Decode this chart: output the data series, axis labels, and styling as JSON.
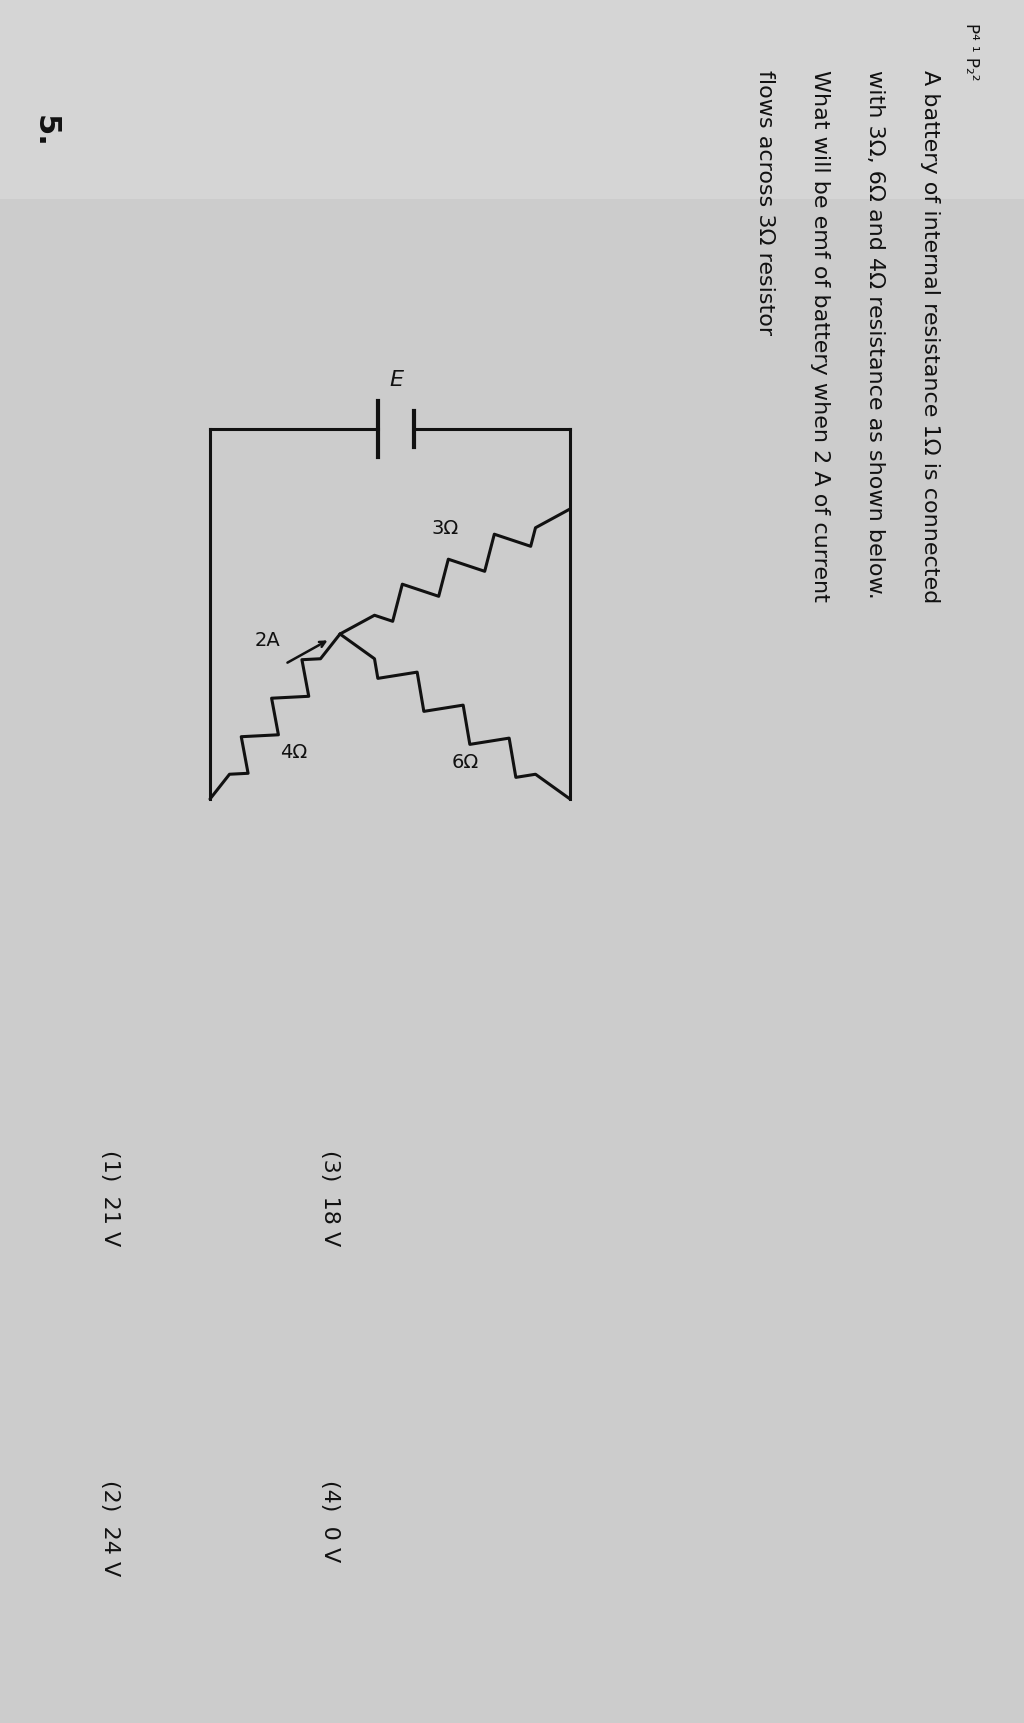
{
  "background_color": "#c8c8c8",
  "question_number": "5.",
  "question_text_lines": [
    "A battery of internal resistance 1Ω is connected",
    "with 3Ω, 6Ω and 4Ω resistance as shown below.",
    "What will be emf of battery when 2 A of current",
    "flows across 3Ω resistor"
  ],
  "options": [
    "(1)  21 V",
    "(2)  24 V",
    "(3)  18 V",
    "(4)  0 V"
  ],
  "header_text": "P⁴ ¹ P₂²",
  "circuit": {
    "res_3ohm": "3Ω",
    "res_6ohm": "6Ω",
    "res_4ohm": "4Ω",
    "current_label": "2A",
    "battery_label": "E"
  },
  "text_color": "#111111",
  "line_color": "#111111",
  "font_size_question": 16,
  "font_size_options": 16,
  "font_size_labels": 14,
  "font_size_qnum": 20
}
